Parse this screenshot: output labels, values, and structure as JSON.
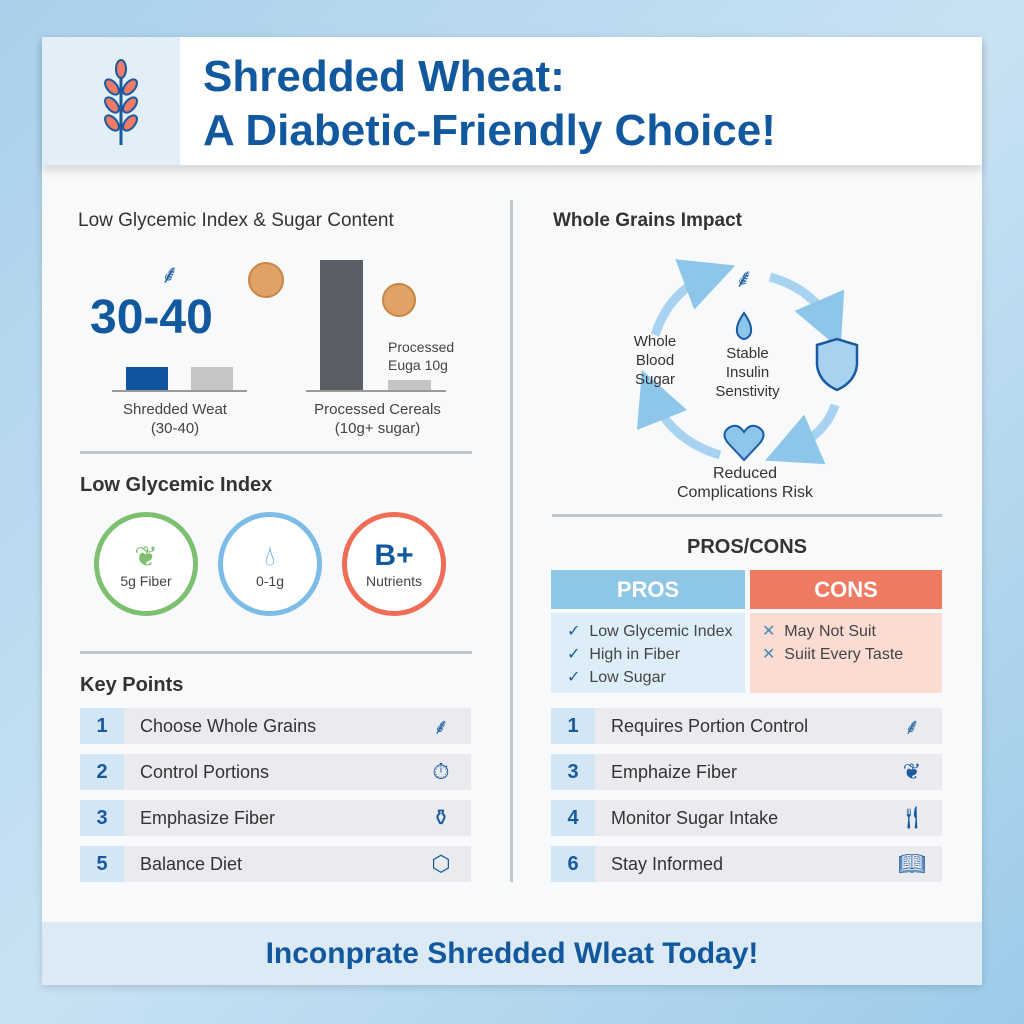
{
  "header": {
    "title_line1": "Shredded Wheat:",
    "title_line2": "A Diabetic-Friendly Choice!"
  },
  "glycemic_section": {
    "heading": "Low Glycemic Index & Sugar Content",
    "big_value": "30-40",
    "left_label_1": "Shredded Weat",
    "left_label_2": "(30-40)",
    "right_label_1": "Processed Cereals",
    "right_label_2": "(10g+ sugar)",
    "annotation_1": "Processed",
    "annotation_2": "Euga 10g",
    "colors": {
      "shredded": "#0f55a0",
      "gray": "#c4c5c7",
      "dark": "#5b5f65"
    }
  },
  "low_gi": {
    "heading": "Low Glycemic Index",
    "circles": [
      {
        "label": "5g Fiber",
        "icon": "leaf-icon",
        "color": "#7cc070"
      },
      {
        "label": "0-1g",
        "icon": "drop-icon",
        "color": "#7dbce6"
      },
      {
        "label": "Nutrients",
        "big": "B+",
        "color": "#ef6d57"
      }
    ]
  },
  "key_points": {
    "heading": "Key Points",
    "items": [
      {
        "num": "1",
        "label": "Choose Whole Grains",
        "icon": "wheat-icon"
      },
      {
        "num": "2",
        "label": "Control Portions",
        "icon": "timer-icon"
      },
      {
        "num": "3",
        "label": "Emphasize Fiber",
        "icon": "jar-icon"
      },
      {
        "num": "5",
        "label": "Balance Diet",
        "icon": "cube-icon"
      }
    ]
  },
  "whole_grains": {
    "heading": "Whole Grains Impact",
    "left": [
      "Whole",
      "Blood",
      "Sugar"
    ],
    "center": [
      "Stable",
      "Insulin",
      "Senstivity"
    ],
    "bottom": [
      "Reduced",
      "Complications Risk"
    ]
  },
  "pros_cons": {
    "heading": "PROS/CONS",
    "pros_title": "PROS",
    "cons_title": "CONS",
    "pros": [
      "Low Glycemic Index",
      "High in Fiber",
      "Low Sugar"
    ],
    "cons": [
      "May Not Suit",
      "Suiit Every Taste"
    ]
  },
  "right_points": {
    "items": [
      {
        "num": "1",
        "label": "Requires Portion Control",
        "icon": "wheat-icon"
      },
      {
        "num": "3",
        "label": "Emphaize Fiber",
        "icon": "leaf-icon"
      },
      {
        "num": "4",
        "label": "Monitor Sugar Intake",
        "icon": "fork-knife-icon"
      },
      {
        "num": "6",
        "label": "Stay Informed",
        "icon": "book-icon"
      }
    ]
  },
  "footer": {
    "text": "Inconprate Shredded Wleat Today!"
  }
}
